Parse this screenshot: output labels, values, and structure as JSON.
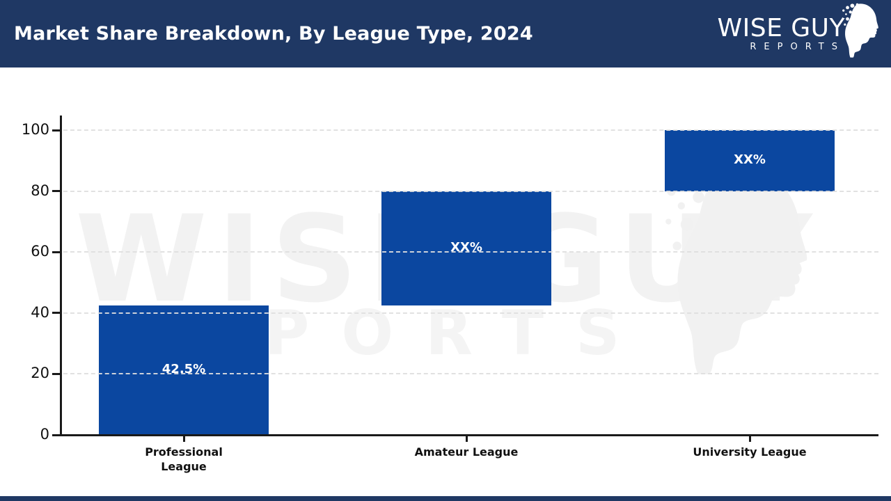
{
  "header": {
    "title": "Market Share Breakdown, By League Type, 2024",
    "logo": {
      "name": "WISE GUY",
      "sub": "REPORTS"
    }
  },
  "watermark": {
    "name": "WISE GUY",
    "sub": "REPORTS"
  },
  "chart_data": {
    "type": "bar",
    "subtype": "waterfall-breakdown",
    "title": "Market Share Breakdown, By League Type, 2024",
    "categories": [
      "Professional\nLeague",
      "Amateur League",
      "University League"
    ],
    "segments": [
      {
        "category": "Professional League",
        "start": 0,
        "end": 42.5,
        "label": "42.5%"
      },
      {
        "category": "Amateur League",
        "start": 42.5,
        "end": 80,
        "label": "XX%"
      },
      {
        "category": "University League",
        "start": 80,
        "end": 100,
        "label": "XX%"
      }
    ],
    "yticks": [
      0,
      20,
      40,
      60,
      80,
      100
    ],
    "ylim": [
      0,
      105
    ],
    "xlabel": "",
    "ylabel": "",
    "grid": "horizontal-dashed",
    "legend": "none",
    "colors": {
      "bar": "#0b47a0",
      "bar_label": "#ffffff",
      "axis": "#1a1a1a",
      "grid": "#dedede",
      "header_bg": "#1f3864",
      "watermark": "#f2f2f2"
    }
  }
}
